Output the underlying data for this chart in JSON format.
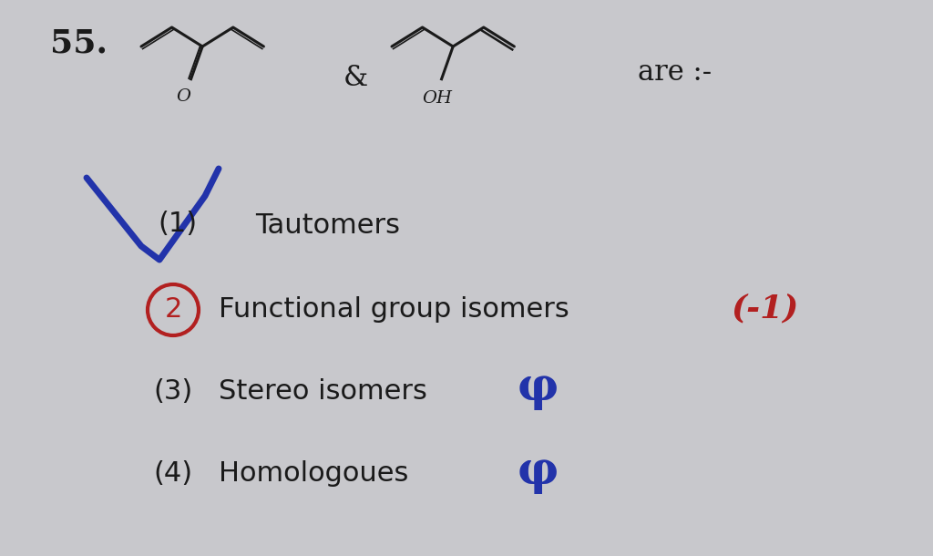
{
  "bg_color": "#c8c8cc",
  "question_number": "55.",
  "are_text": "are :-",
  "options": [
    {
      "num": "1",
      "text": "Tautomers",
      "num_color": "#1a1a1a",
      "text_color": "#1a1a1a",
      "checkmark": true
    },
    {
      "num": "2",
      "text": "Functional group isomers",
      "num_color": "#b22020",
      "text_color": "#1a1a1a",
      "circled": true,
      "side_note": "(-1)"
    },
    {
      "num": "3",
      "text": "Stereo isomers",
      "num_color": "#1a1a1a",
      "text_color": "#1a1a1a"
    },
    {
      "num": "4",
      "text": "Homologoues",
      "num_color": "#1a1a1a",
      "text_color": "#1a1a1a"
    }
  ],
  "title_fontsize": 24,
  "option_fontsize": 22,
  "fig_width": 10.24,
  "fig_height": 6.1
}
